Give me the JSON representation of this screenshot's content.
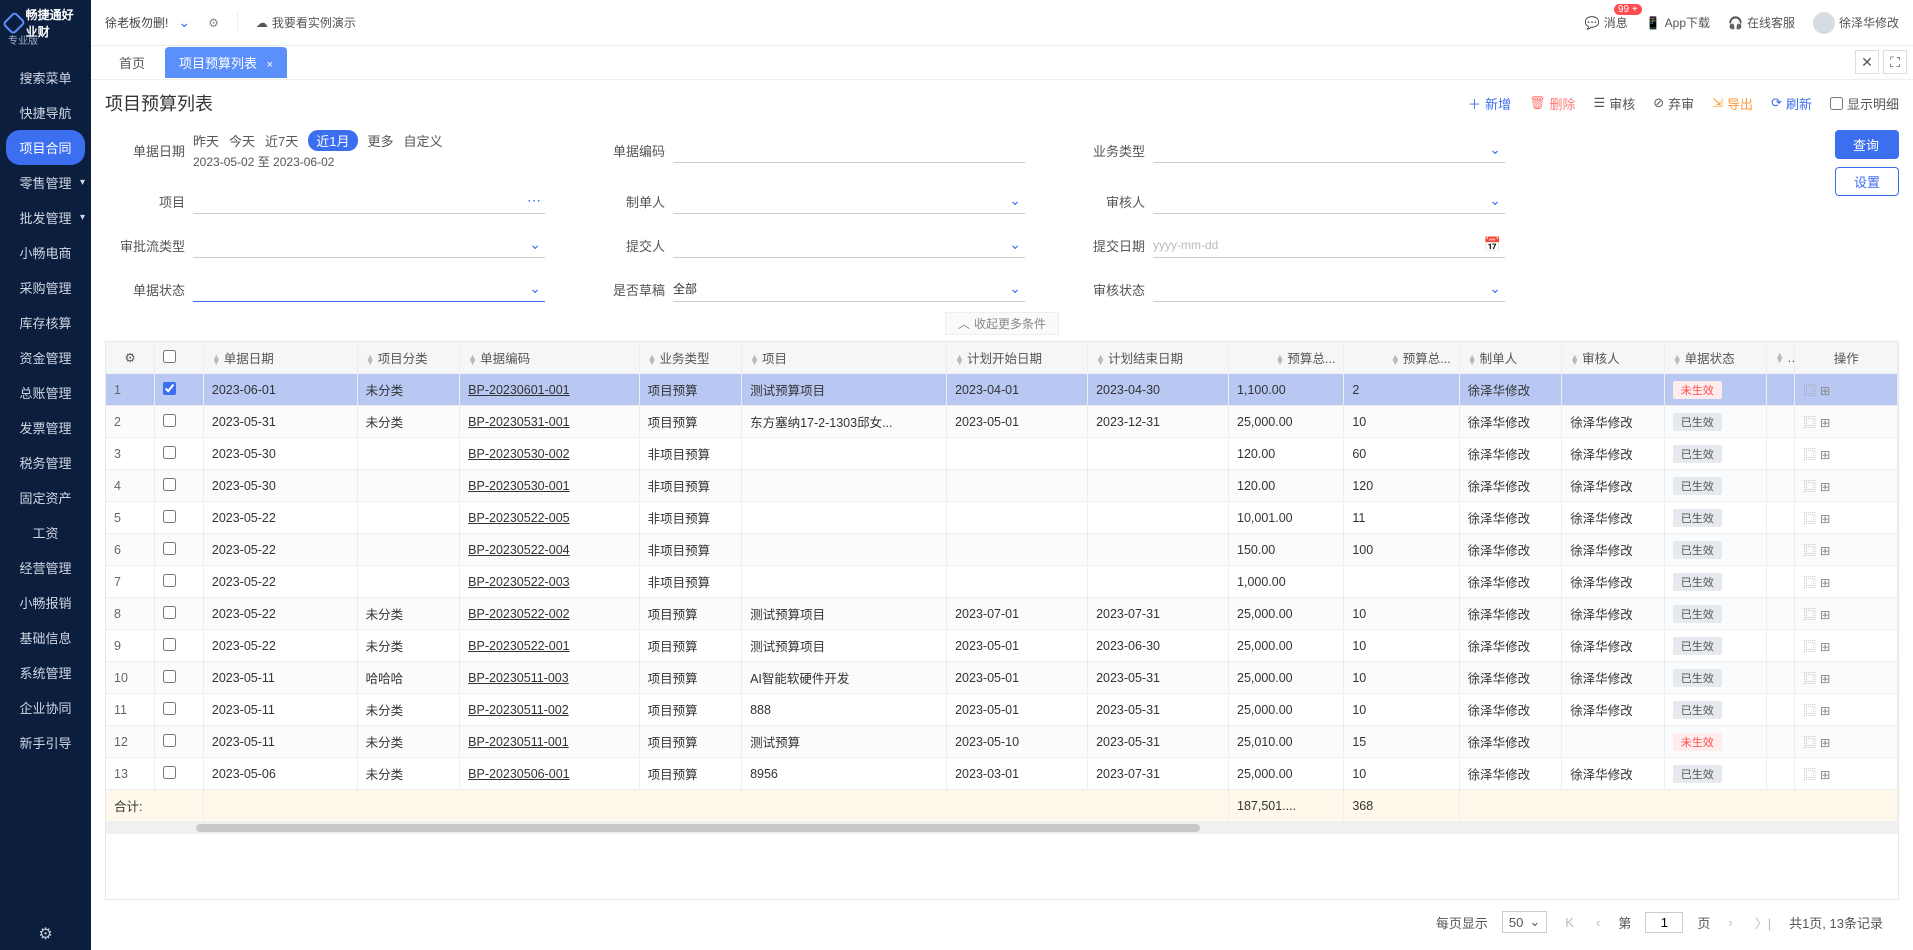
{
  "brand": {
    "name": "畅捷通好业财",
    "edition": "专业版"
  },
  "sidebar": {
    "items": [
      {
        "label": "搜索菜单"
      },
      {
        "label": "快捷导航"
      },
      {
        "label": "项目合同",
        "active": true
      },
      {
        "label": "零售管理",
        "caret": true
      },
      {
        "label": "批发管理",
        "caret": true
      },
      {
        "label": "小畅电商"
      },
      {
        "label": "采购管理"
      },
      {
        "label": "库存核算"
      },
      {
        "label": "资金管理"
      },
      {
        "label": "总账管理"
      },
      {
        "label": "发票管理"
      },
      {
        "label": "税务管理"
      },
      {
        "label": "固定资产"
      },
      {
        "label": "工资"
      },
      {
        "label": "经营管理"
      },
      {
        "label": "小畅报销"
      },
      {
        "label": "基础信息"
      },
      {
        "label": "系统管理"
      },
      {
        "label": "企业协同"
      },
      {
        "label": "新手引导"
      }
    ]
  },
  "topbar": {
    "org": "徐老板勿删!",
    "demo": "我要看实例演示",
    "msg": "消息",
    "badge": "99 +",
    "download": "App下载",
    "service": "在线客服",
    "user": "徐泽华修改"
  },
  "tabs": {
    "home": "首页",
    "active": "项目预算列表"
  },
  "page": {
    "title": "项目预算列表",
    "actions": {
      "add": "新增",
      "del": "删除",
      "audit": "审核",
      "abandon": "弃审",
      "export": "导出",
      "refresh": "刷新",
      "detail": "显示明细"
    },
    "search_btn": "查询",
    "config_btn": "设置",
    "collapse": "收起更多条件"
  },
  "filter": {
    "labels": {
      "date": "单据日期",
      "code": "单据编码",
      "biztype": "业务类型",
      "project": "项目",
      "maker": "制单人",
      "auditor": "审核人",
      "flowtype": "审批流类型",
      "submitter": "提交人",
      "submitdate": "提交日期",
      "status": "单据状态",
      "isdraft": "是否草稿",
      "auditstatus": "审核状态"
    },
    "date_quick": {
      "yesterday": "昨天",
      "today": "今天",
      "last7": "近7天",
      "last1m": "近1月",
      "more": "更多",
      "custom": "自定义"
    },
    "date_range": "2023-05-02 至 2023-06-02",
    "submit_date_ph": "yyyy-mm-dd",
    "isdraft_val": "全部"
  },
  "table": {
    "cols": {
      "date": "单据日期",
      "category": "项目分类",
      "code": "单据编码",
      "biztype": "业务类型",
      "project": "项目",
      "start": "计划开始日期",
      "end": "计划结束日期",
      "total1": "预算总...",
      "total2": "预算总...",
      "maker": "制单人",
      "auditor": "审核人",
      "status": "单据状态",
      "op": "操作"
    },
    "rows": [
      {
        "i": "1",
        "date": "2023-06-01",
        "cat": "未分类",
        "code": "BP-20230601-001",
        "biz": "项目预算",
        "proj": "测试预算项目",
        "start": "2023-04-01",
        "end": "2023-04-30",
        "t1": "1,100.00",
        "t2": "2",
        "maker": "徐泽华修改",
        "auditor": "",
        "status": "未生效",
        "stcls": "st-red",
        "sel": true
      },
      {
        "i": "2",
        "date": "2023-05-31",
        "cat": "未分类",
        "code": "BP-20230531-001",
        "biz": "项目预算",
        "proj": "东方塞纳17-2-1303邱女...",
        "start": "2023-05-01",
        "end": "2023-12-31",
        "t1": "25,000.00",
        "t2": "10",
        "maker": "徐泽华修改",
        "auditor": "徐泽华修改",
        "status": "已生效",
        "stcls": "st-green"
      },
      {
        "i": "3",
        "date": "2023-05-30",
        "cat": "",
        "code": "BP-20230530-002",
        "biz": "非项目预算",
        "proj": "",
        "start": "",
        "end": "",
        "t1": "120.00",
        "t2": "60",
        "maker": "徐泽华修改",
        "auditor": "徐泽华修改",
        "status": "已生效",
        "stcls": "st-green"
      },
      {
        "i": "4",
        "date": "2023-05-30",
        "cat": "",
        "code": "BP-20230530-001",
        "biz": "非项目预算",
        "proj": "",
        "start": "",
        "end": "",
        "t1": "120.00",
        "t2": "120",
        "maker": "徐泽华修改",
        "auditor": "徐泽华修改",
        "status": "已生效",
        "stcls": "st-green"
      },
      {
        "i": "5",
        "date": "2023-05-22",
        "cat": "",
        "code": "BP-20230522-005",
        "biz": "非项目预算",
        "proj": "",
        "start": "",
        "end": "",
        "t1": "10,001.00",
        "t2": "11",
        "maker": "徐泽华修改",
        "auditor": "徐泽华修改",
        "status": "已生效",
        "stcls": "st-green"
      },
      {
        "i": "6",
        "date": "2023-05-22",
        "cat": "",
        "code": "BP-20230522-004",
        "biz": "非项目预算",
        "proj": "",
        "start": "",
        "end": "",
        "t1": "150.00",
        "t2": "100",
        "maker": "徐泽华修改",
        "auditor": "徐泽华修改",
        "status": "已生效",
        "stcls": "st-green"
      },
      {
        "i": "7",
        "date": "2023-05-22",
        "cat": "",
        "code": "BP-20230522-003",
        "biz": "非项目预算",
        "proj": "",
        "start": "",
        "end": "",
        "t1": "1,000.00",
        "t2": "",
        "maker": "徐泽华修改",
        "auditor": "徐泽华修改",
        "status": "已生效",
        "stcls": "st-green"
      },
      {
        "i": "8",
        "date": "2023-05-22",
        "cat": "未分类",
        "code": "BP-20230522-002",
        "biz": "项目预算",
        "proj": "测试预算项目",
        "start": "2023-07-01",
        "end": "2023-07-31",
        "t1": "25,000.00",
        "t2": "10",
        "maker": "徐泽华修改",
        "auditor": "徐泽华修改",
        "status": "已生效",
        "stcls": "st-green"
      },
      {
        "i": "9",
        "date": "2023-05-22",
        "cat": "未分类",
        "code": "BP-20230522-001",
        "biz": "项目预算",
        "proj": "测试预算项目",
        "start": "2023-05-01",
        "end": "2023-06-30",
        "t1": "25,000.00",
        "t2": "10",
        "maker": "徐泽华修改",
        "auditor": "徐泽华修改",
        "status": "已生效",
        "stcls": "st-green"
      },
      {
        "i": "10",
        "date": "2023-05-11",
        "cat": "哈哈哈",
        "code": "BP-20230511-003",
        "biz": "项目预算",
        "proj": "AI智能软硬件开发",
        "start": "2023-05-01",
        "end": "2023-05-31",
        "t1": "25,000.00",
        "t2": "10",
        "maker": "徐泽华修改",
        "auditor": "徐泽华修改",
        "status": "已生效",
        "stcls": "st-green"
      },
      {
        "i": "11",
        "date": "2023-05-11",
        "cat": "未分类",
        "code": "BP-20230511-002",
        "biz": "项目预算",
        "proj": "888",
        "start": "2023-05-01",
        "end": "2023-05-31",
        "t1": "25,000.00",
        "t2": "10",
        "maker": "徐泽华修改",
        "auditor": "徐泽华修改",
        "status": "已生效",
        "stcls": "st-green"
      },
      {
        "i": "12",
        "date": "2023-05-11",
        "cat": "未分类",
        "code": "BP-20230511-001",
        "biz": "项目预算",
        "proj": "测试预算",
        "start": "2023-05-10",
        "end": "2023-05-31",
        "t1": "25,010.00",
        "t2": "15",
        "maker": "徐泽华修改",
        "auditor": "",
        "status": "未生效",
        "stcls": "st-red"
      },
      {
        "i": "13",
        "date": "2023-05-06",
        "cat": "未分类",
        "code": "BP-20230506-001",
        "biz": "项目预算",
        "proj": "8956",
        "start": "2023-03-01",
        "end": "2023-07-31",
        "t1": "25,000.00",
        "t2": "10",
        "maker": "徐泽华修改",
        "auditor": "徐泽华修改",
        "status": "已生效",
        "stcls": "st-green"
      }
    ],
    "footer": {
      "label": "合计:",
      "t1": "187,501....",
      "t2": "368"
    }
  },
  "pager": {
    "pgsz_lbl": "每页显示",
    "pgsz": "50",
    "page_lbl1": "第",
    "page": "1",
    "page_lbl2": "页",
    "summary": "共1页, 13条记录"
  }
}
